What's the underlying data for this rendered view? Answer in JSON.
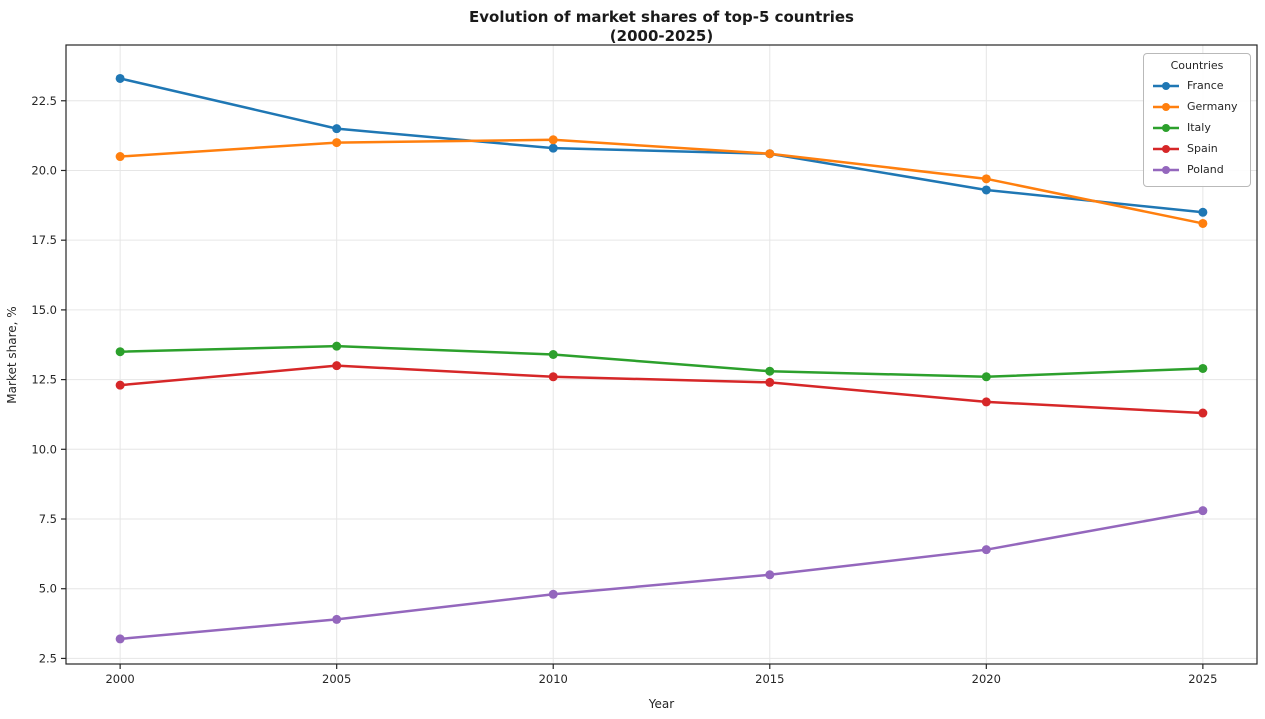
{
  "chart_data": {
    "type": "line",
    "title": "Evolution of market shares of top-5 countries",
    "subtitle": "(2000-2025)",
    "xlabel": "Year",
    "ylabel": "Market share, %",
    "legend_title": "Countries",
    "legend_position": "upper right",
    "grid": true,
    "x": [
      2000,
      2005,
      2010,
      2015,
      2020,
      2025
    ],
    "xticks": [
      "2000",
      "2005",
      "2010",
      "2015",
      "2020",
      "2025"
    ],
    "yticks": [
      "2.5",
      "5.0",
      "7.5",
      "10.0",
      "12.5",
      "15.0",
      "17.5",
      "20.0",
      "22.5"
    ],
    "xlim": [
      1998.75,
      2026.25
    ],
    "ylim": [
      2.3,
      24.5
    ],
    "axis_color": "#262626",
    "grid_color": "#e6e6e6",
    "series": [
      {
        "name": "France",
        "color": "#1f77b4",
        "values": [
          23.3,
          21.5,
          20.8,
          20.6,
          19.3,
          18.5
        ]
      },
      {
        "name": "Germany",
        "color": "#ff7f0e",
        "values": [
          20.5,
          21.0,
          21.1,
          20.6,
          19.7,
          18.1
        ]
      },
      {
        "name": "Italy",
        "color": "#2ca02c",
        "values": [
          13.5,
          13.7,
          13.4,
          12.8,
          12.6,
          12.9
        ]
      },
      {
        "name": "Spain",
        "color": "#d62728",
        "values": [
          12.3,
          13.0,
          12.6,
          12.4,
          11.7,
          11.3
        ]
      },
      {
        "name": "Poland",
        "color": "#9467bd",
        "values": [
          3.2,
          3.9,
          4.8,
          5.5,
          6.4,
          7.8
        ]
      }
    ]
  }
}
